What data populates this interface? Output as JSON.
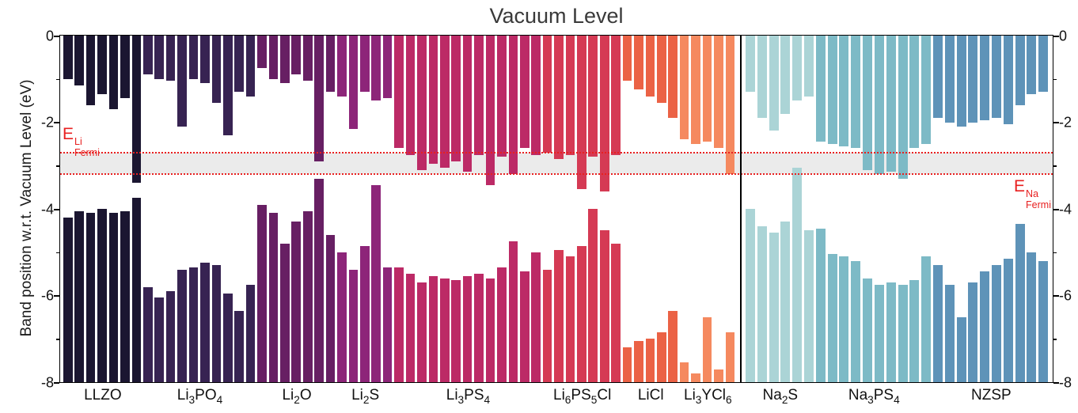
{
  "figure": {
    "title": "Vacuum Level",
    "y_axis_label": "Band position w.r.t. Vacuum Level (eV)",
    "y_tick_labels": [
      "0",
      "-2",
      "-4",
      "-6",
      "-8"
    ],
    "fermi_li": {
      "base": "E",
      "sup": "Li",
      "sub": "Fermi"
    },
    "fermi_na": {
      "base": "E",
      "sup": "Na",
      "sub": "Fermi"
    },
    "accent_red": "#e82020",
    "band_fill": "#dedede",
    "axis_color": "#000000"
  },
  "chart_data": {
    "type": "bar",
    "title": "Vacuum Level",
    "xlabel": "",
    "ylabel": "Band position w.r.t. Vacuum Level (eV)",
    "ylim": [
      -8,
      0
    ],
    "yticks": [
      0,
      -2,
      -4,
      -6,
      -8
    ],
    "grid": false,
    "legend": "none",
    "fermi_levels": {
      "li": -2.7,
      "na": -3.2
    },
    "fermi_band_range": [
      -2.7,
      -3.2
    ],
    "divider_after_group": "Li3YCl6",
    "groups": [
      {
        "label": "LLZO",
        "section": "li",
        "color": "#1b1631",
        "top_bars": [
          -1.0,
          -1.15,
          -1.6,
          -1.35,
          -1.7,
          -1.45,
          -3.4
        ],
        "bottom_bars": [
          -4.2,
          -4.05,
          -4.1,
          -4.0,
          -4.1,
          -4.05,
          -3.75
        ]
      },
      {
        "label": "Li3PO4",
        "section": "li",
        "color": "#372352",
        "top_bars": [
          -0.9,
          -1.0,
          -1.05,
          -2.1,
          -1.0,
          -1.1,
          -1.55,
          -2.3,
          -1.3,
          -1.4
        ],
        "bottom_bars": [
          -5.8,
          -6.05,
          -5.9,
          -5.4,
          -5.35,
          -5.25,
          -5.3,
          -5.95,
          -6.35,
          -5.75
        ]
      },
      {
        "label": "Li2O",
        "section": "li",
        "color": "#671f63",
        "top_bars": [
          -0.75,
          -1.0,
          -1.1,
          -0.9,
          -1.05,
          -2.9,
          -1.3
        ],
        "bottom_bars": [
          -3.9,
          -4.1,
          -4.8,
          -4.3,
          -4.05,
          -3.3,
          -4.6
        ]
      },
      {
        "label": "Li2S",
        "section": "li",
        "color": "#8d2579",
        "top_bars": [
          -1.4,
          -2.15,
          -1.3,
          -1.5,
          -1.45
        ],
        "bottom_bars": [
          -5.0,
          -5.4,
          -4.85,
          -3.45,
          -5.35
        ]
      },
      {
        "label": "Li3PS4",
        "section": "li",
        "color": "#bc2a66",
        "top_bars": [
          -2.6,
          -2.75,
          -3.1,
          -2.95,
          -3.05,
          -2.9,
          -3.15,
          -2.75,
          -3.45,
          -2.8,
          -3.2,
          -2.6,
          -2.75
        ],
        "bottom_bars": [
          -5.35,
          -5.5,
          -5.7,
          -5.55,
          -5.6,
          -5.65,
          -5.55,
          -5.5,
          -5.6,
          -5.35,
          -4.75,
          -5.45,
          -5.0
        ]
      },
      {
        "label": "Li6PS5Cl",
        "section": "li",
        "color": "#d53a54",
        "top_bars": [
          -2.7,
          -2.85,
          -2.75,
          -3.55,
          -2.8,
          -3.6,
          -2.75
        ],
        "bottom_bars": [
          -5.4,
          -4.95,
          -5.1,
          -4.85,
          -4.0,
          -4.5,
          -4.8
        ]
      },
      {
        "label": "LiCl",
        "section": "li",
        "color": "#eb6245",
        "top_bars": [
          -1.05,
          -1.25,
          -1.4,
          -1.55,
          -1.9
        ],
        "bottom_bars": [
          -7.2,
          -7.05,
          -7.0,
          -6.85,
          -6.35
        ]
      },
      {
        "label": "Li3YCl6",
        "section": "li",
        "color": "#f5895f",
        "top_bars": [
          -2.4,
          -2.5,
          -2.45,
          -2.6,
          -3.2
        ],
        "bottom_bars": [
          -7.55,
          -7.8,
          -6.5,
          -7.7,
          -6.85
        ]
      },
      {
        "label": "Na2S",
        "section": "na",
        "color": "#abd4d6",
        "top_bars": [
          -1.3,
          -1.9,
          -2.2,
          -1.8,
          -1.5,
          -1.4
        ],
        "bottom_bars": [
          -4.0,
          -4.4,
          -4.55,
          -4.3,
          -3.05,
          -4.5
        ]
      },
      {
        "label": "Na3PS4",
        "section": "na",
        "color": "#7dbac6",
        "top_bars": [
          -2.45,
          -2.5,
          -2.55,
          -2.6,
          -3.1,
          -3.2,
          -3.15,
          -3.3,
          -2.6,
          -2.5
        ],
        "bottom_bars": [
          -4.45,
          -5.05,
          -5.1,
          -5.2,
          -5.6,
          -5.75,
          -5.7,
          -5.75,
          -5.65,
          -5.1
        ]
      },
      {
        "label": "NZSP",
        "section": "na",
        "color": "#5e93b8",
        "top_bars": [
          -1.9,
          -2.0,
          -2.1,
          -2.0,
          -1.95,
          -1.9,
          -2.05,
          -1.6,
          -1.35,
          -1.3
        ],
        "bottom_bars": [
          -5.3,
          -5.75,
          -6.5,
          -5.7,
          -5.45,
          -5.3,
          -5.15,
          -4.35,
          -5.0,
          -5.2
        ]
      }
    ]
  }
}
